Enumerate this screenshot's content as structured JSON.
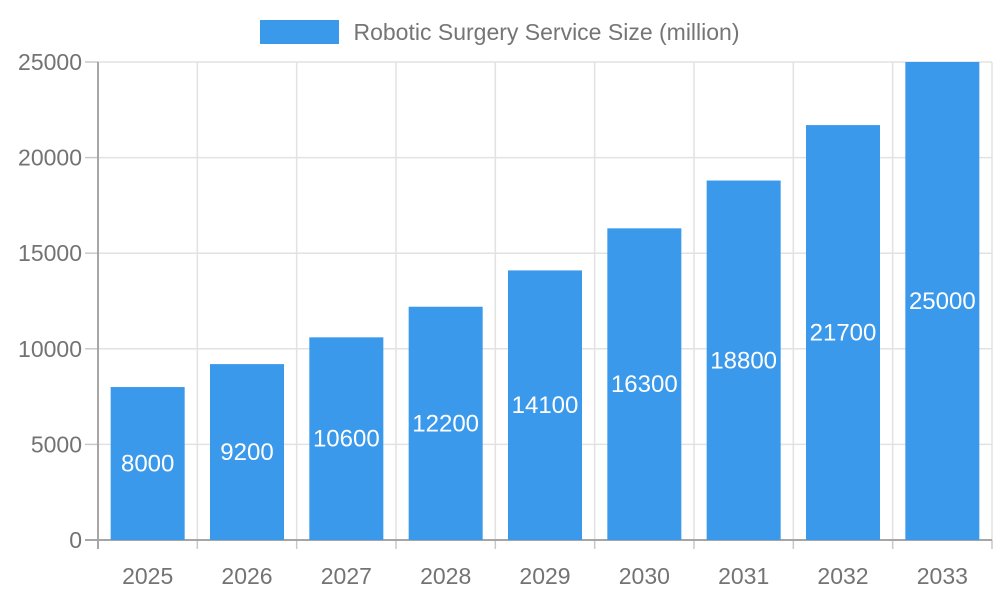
{
  "chart_data": {
    "type": "bar",
    "title": "Robotic Surgery Service Size (million)",
    "legend": {
      "label": "Robotic Surgery Service Size (million)",
      "position": "top-center"
    },
    "categories": [
      "2025",
      "2026",
      "2027",
      "2028",
      "2029",
      "2030",
      "2031",
      "2032",
      "2033"
    ],
    "values": [
      8000,
      9200,
      10600,
      12200,
      14100,
      16300,
      18800,
      21700,
      25000
    ],
    "value_labels": [
      "8000",
      "9200",
      "10600",
      "12200",
      "14100",
      "16300",
      "18800",
      "21700",
      "25000"
    ],
    "xlabel": "",
    "ylabel": "",
    "ylim": [
      0,
      25000
    ],
    "yticks": [
      0,
      5000,
      10000,
      15000,
      20000,
      25000
    ],
    "ytick_labels": [
      "0",
      "5000",
      "10000",
      "15000",
      "20000",
      "25000"
    ],
    "grid": true,
    "colors": {
      "bar": "#3B99EC",
      "bar_label_text": "#FFFFFF",
      "axis_line": "#A6A6A6",
      "tick_line": "#C9C9C9",
      "gridline": "#E2E2E2",
      "tick_label": "#737373",
      "legend_text": "#757575",
      "background": "#FFFFFF"
    }
  }
}
